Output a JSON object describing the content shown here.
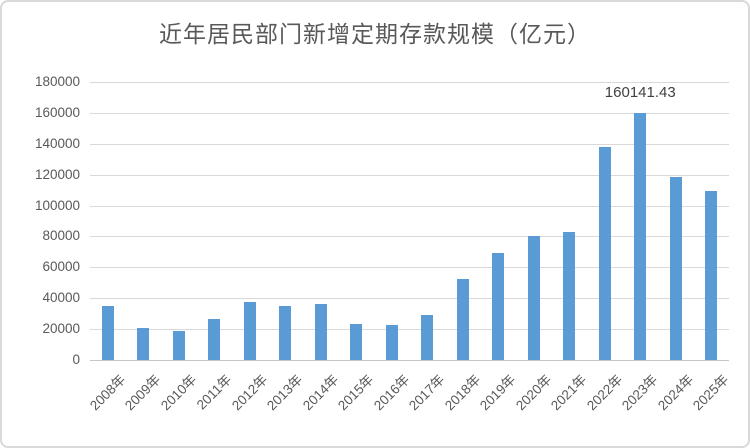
{
  "chart_data": {
    "type": "bar",
    "title": "近年居民部门新增定期存款规模（亿元）",
    "categories": [
      "2008年",
      "2009年",
      "2010年",
      "2011年",
      "2012年",
      "2013年",
      "2014年",
      "2015年",
      "2016年",
      "2017年",
      "2018年",
      "2019年",
      "2020年",
      "2021年",
      "2022年",
      "2023年",
      "2024年",
      "2025年"
    ],
    "values": [
      35000,
      20600,
      19000,
      26400,
      37400,
      35000,
      36200,
      23400,
      22700,
      29100,
      52600,
      69000,
      80600,
      82600,
      137600,
      160141.43,
      118700,
      109600
    ],
    "xlabel": "",
    "ylabel": "",
    "ylim": [
      0,
      180000
    ],
    "ytick_step": 20000,
    "ytick_labels": [
      "0",
      "20000",
      "40000",
      "60000",
      "80000",
      "100000",
      "120000",
      "140000",
      "160000",
      "180000"
    ],
    "grid": true,
    "legend_position": "none",
    "data_labels": [
      {
        "category_index": 15,
        "text": "160141.43"
      }
    ],
    "colors": {
      "bar": "#5b9bd5",
      "gridline": "#d9d9d9",
      "axis_line": "#c6c6c6",
      "axis_text": "#595959",
      "title_text": "#595959",
      "data_label_text": "#404040",
      "frame_border": "#d9d9d9",
      "background": "#ffffff"
    }
  }
}
